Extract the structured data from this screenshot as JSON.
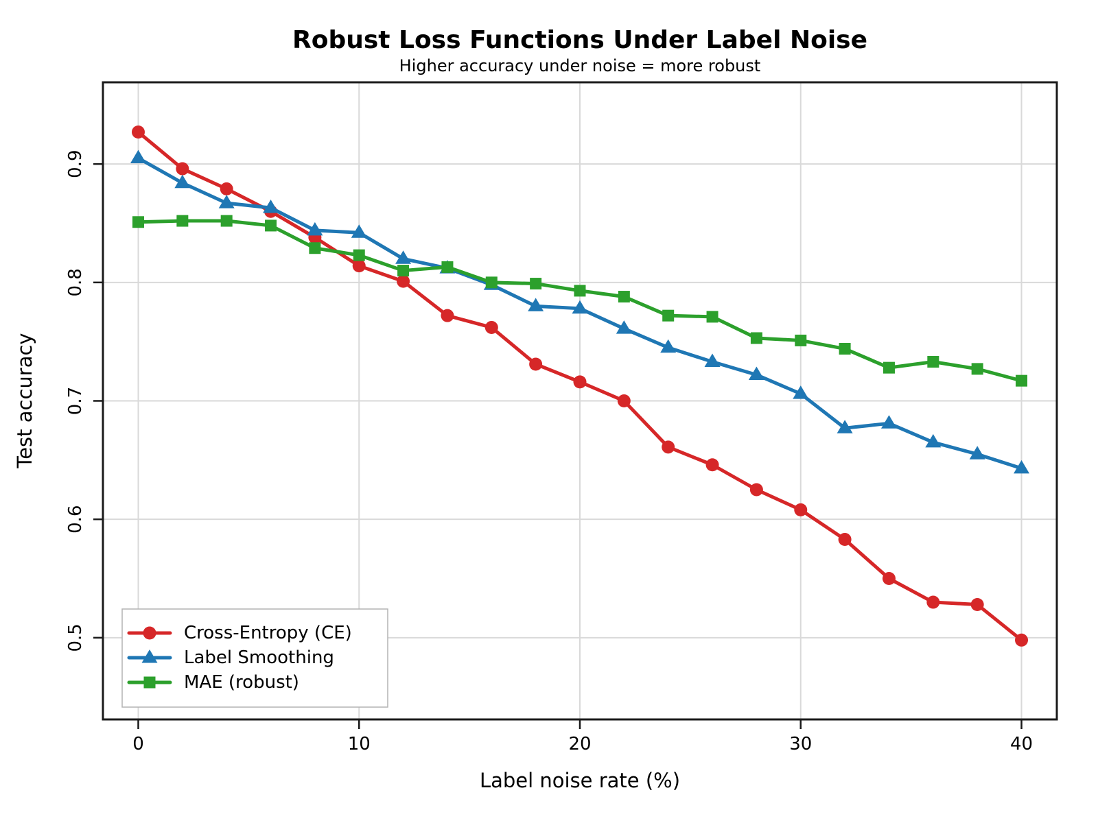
{
  "chart_data": {
    "type": "line",
    "title": "Robust Loss Functions Under Label Noise",
    "subtitle": "Higher accuracy under noise = more robust",
    "xlabel": "Label noise rate (%)",
    "ylabel": "Test accuracy",
    "x": [
      0,
      2,
      4,
      6,
      8,
      10,
      12,
      14,
      16,
      18,
      20,
      22,
      24,
      26,
      28,
      30,
      32,
      34,
      36,
      38,
      40
    ],
    "xticks": [
      0,
      10,
      20,
      30,
      40
    ],
    "xtick_labels": [
      "0",
      "10",
      "20",
      "30",
      "40"
    ],
    "yticks": [
      0.5,
      0.6,
      0.7,
      0.8,
      0.9
    ],
    "ytick_labels": [
      "0.5",
      "0.6",
      "0.7",
      "0.8",
      "0.9"
    ],
    "xlim": [
      -1.6,
      41.6
    ],
    "ylim": [
      0.431,
      0.969
    ],
    "grid": true,
    "legend_position": "lower left",
    "series": [
      {
        "name": "Cross-Entropy (CE)",
        "marker": "circle",
        "color": "#d62728",
        "values": [
          0.927,
          0.896,
          0.879,
          0.86,
          0.838,
          0.814,
          0.801,
          0.772,
          0.762,
          0.731,
          0.716,
          0.7,
          0.661,
          0.646,
          0.625,
          0.608,
          0.583,
          0.55,
          0.53,
          0.528,
          0.498
        ]
      },
      {
        "name": "Label Smoothing",
        "marker": "triangle",
        "color": "#1f77b4",
        "values": [
          0.905,
          0.884,
          0.867,
          0.863,
          0.844,
          0.842,
          0.82,
          0.812,
          0.798,
          0.78,
          0.778,
          0.761,
          0.745,
          0.733,
          0.722,
          0.706,
          0.677,
          0.681,
          0.665,
          0.655,
          0.643
        ]
      },
      {
        "name": "MAE (robust)",
        "marker": "square",
        "color": "#2ca02c",
        "values": [
          0.851,
          0.852,
          0.852,
          0.848,
          0.829,
          0.823,
          0.81,
          0.813,
          0.8,
          0.799,
          0.793,
          0.788,
          0.772,
          0.771,
          0.753,
          0.751,
          0.744,
          0.728,
          0.733,
          0.727,
          0.717
        ]
      }
    ],
    "colors": {
      "grid": "#d9d9d9",
      "frame": "#1a1a1a",
      "tick": "#1a1a1a",
      "subtitle": "#737373",
      "legend_border": "#b3b3b3",
      "legend_bg": "#ffffff"
    }
  }
}
